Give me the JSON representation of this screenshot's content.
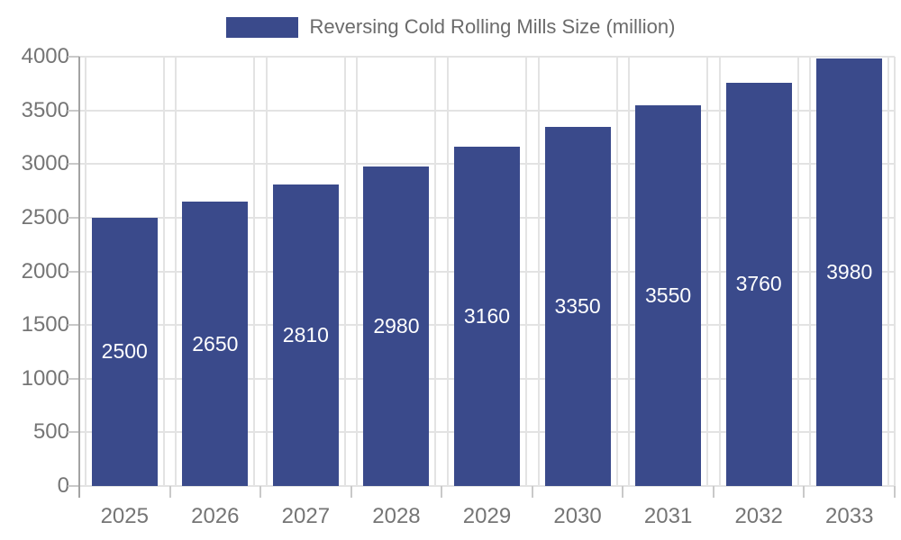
{
  "chart_data": {
    "type": "bar",
    "legend": "Reversing Cold Rolling Mills Size (million)",
    "legend_position": "top",
    "categories": [
      "2025",
      "2026",
      "2027",
      "2028",
      "2029",
      "2030",
      "2031",
      "2032",
      "2033"
    ],
    "values": [
      2500,
      2650,
      2810,
      2980,
      3160,
      3350,
      3550,
      3760,
      3980
    ],
    "bar_value_labels": [
      "2500",
      "2650",
      "2810",
      "2980",
      "3160",
      "3350",
      "3550",
      "3760",
      "3980"
    ],
    "xlabel": "",
    "ylabel": "",
    "ylim": [
      0,
      4000
    ],
    "yticks": [
      0,
      500,
      1000,
      1500,
      2000,
      2500,
      3000,
      3500,
      4000
    ],
    "grid": true,
    "colors": {
      "bar": "#3A4A8B",
      "grid": "#E3E3E3",
      "axis_line": "#A3A3A3",
      "tick_mark": "#C9C9C9",
      "tick_label": "#757575",
      "legend_text": "#6B6B6B",
      "bar_value_text": "#FFFFFF",
      "background": "#FFFFFF"
    }
  }
}
